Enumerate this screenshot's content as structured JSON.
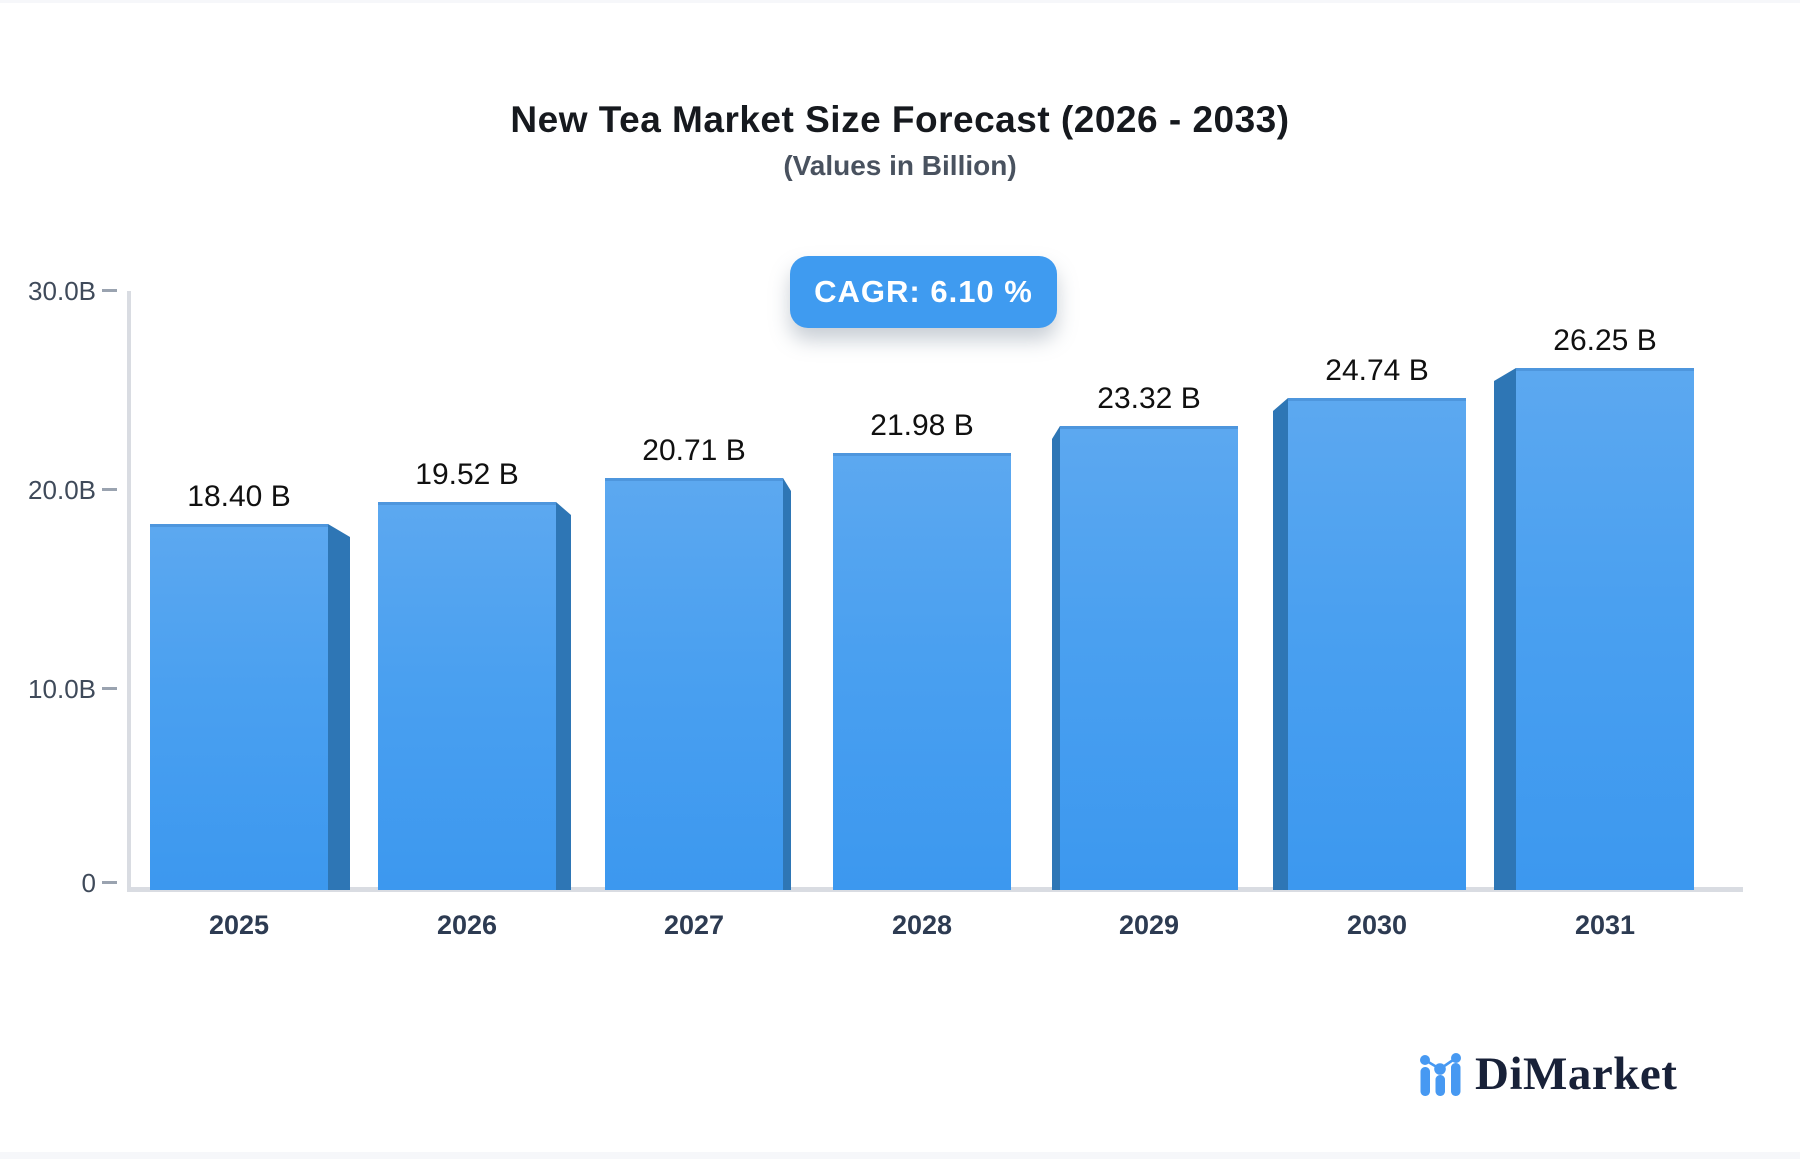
{
  "header": {
    "title": "New Tea Market Size Forecast (2026 - 2033)",
    "subtitle": "(Values in Billion)",
    "cagr_badge": "CAGR: 6.10 %"
  },
  "chart_data": {
    "type": "bar",
    "title": "New Tea Market Size Forecast (2026 - 2033)",
    "subtitle": "(Values in Billion)",
    "categories": [
      "2025",
      "2026",
      "2027",
      "2028",
      "2029",
      "2030",
      "2031"
    ],
    "values": [
      18.4,
      19.52,
      20.71,
      21.98,
      23.32,
      24.74,
      26.25
    ],
    "value_labels": [
      "18.40 B",
      "19.52 B",
      "20.71 B",
      "21.98 B",
      "23.32 B",
      "24.74 B",
      "26.25 B"
    ],
    "yticks": [
      {
        "value": 0,
        "label": "0"
      },
      {
        "value": 10,
        "label": "10.0B"
      },
      {
        "value": 20,
        "label": "20.0B"
      },
      {
        "value": 30,
        "label": "30.0B"
      }
    ],
    "ylim": [
      0,
      30
    ],
    "xlabel": "",
    "ylabel": "",
    "grid": false,
    "legend": false,
    "bar_face_color_top": "#5ca8f0",
    "bar_face_color_bottom": "#3c98ef",
    "bar_side_color": "#2e76b5",
    "axis_color": "#d9dce2"
  },
  "logo": {
    "brand": "DiMarket",
    "icon": "bar-chart-dots-icon",
    "icon_color": "#4799f2",
    "text_color": "#182138"
  }
}
